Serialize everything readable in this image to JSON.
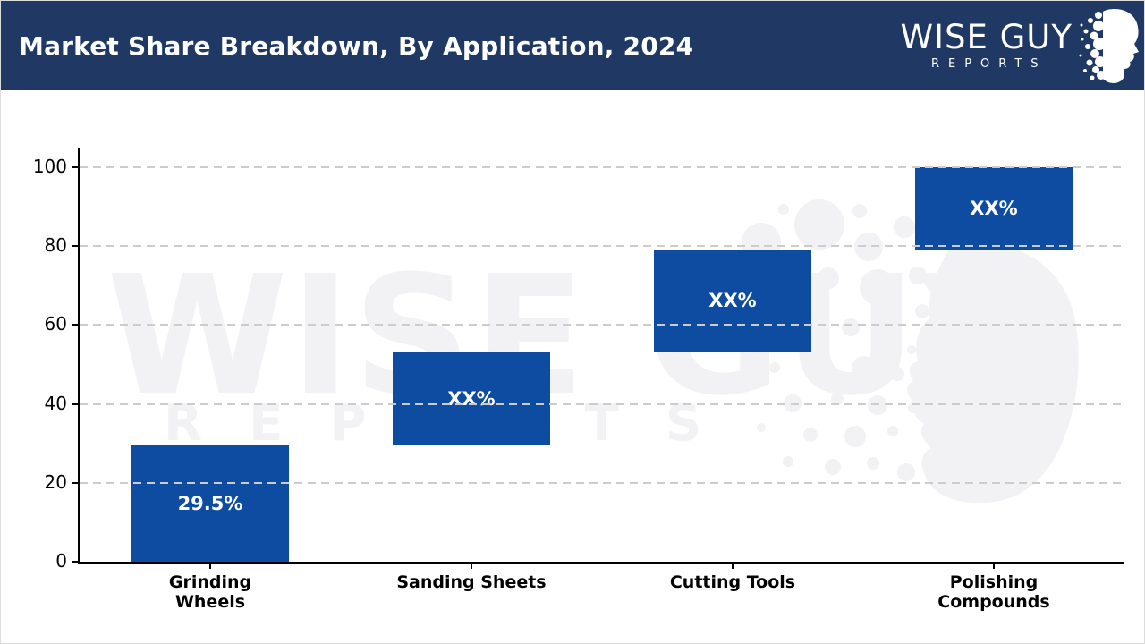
{
  "page": {
    "background": "#ffffff",
    "frame_border_color": "#dcdcdc"
  },
  "header": {
    "background_color": "#1f3864",
    "title": "Market Share Breakdown, By Application, 2024",
    "logo": {
      "line1": "WISE GUY",
      "line2": "REPORTS"
    }
  },
  "watermark": {
    "line1": "WISE GUY",
    "line2": "REPORTS",
    "color": "#f2f2f4"
  },
  "chart_data": {
    "type": "bar",
    "subtype": "waterfall",
    "title": "Market Share Breakdown, By Application, 2024",
    "categories": [
      "Grinding Wheels",
      "Sanding Sheets",
      "Cutting Tools",
      "Polishing Compounds"
    ],
    "segments": [
      {
        "category": "Grinding Wheels",
        "start": 0,
        "end": 29.5,
        "label": "29.5%"
      },
      {
        "category": "Sanding Sheets",
        "start": 29.5,
        "end": 53.2,
        "label": "XX%"
      },
      {
        "category": "Cutting Tools",
        "start": 53.2,
        "end": 79.2,
        "label": "XX%"
      },
      {
        "category": "Polishing Compounds",
        "start": 79.2,
        "end": 100,
        "label": "XX%"
      }
    ],
    "xlabel": "",
    "ylabel": "",
    "ylim": [
      0,
      105
    ],
    "yticks": [
      0,
      20,
      40,
      60,
      80,
      100
    ],
    "grid": "horizontal-dashed",
    "legend": "none",
    "colors": {
      "bar": "#0d4ca0",
      "bar_label": "#ffffff",
      "grid": "#cccccc",
      "axis": "#000000",
      "tick_label": "#000000"
    }
  }
}
